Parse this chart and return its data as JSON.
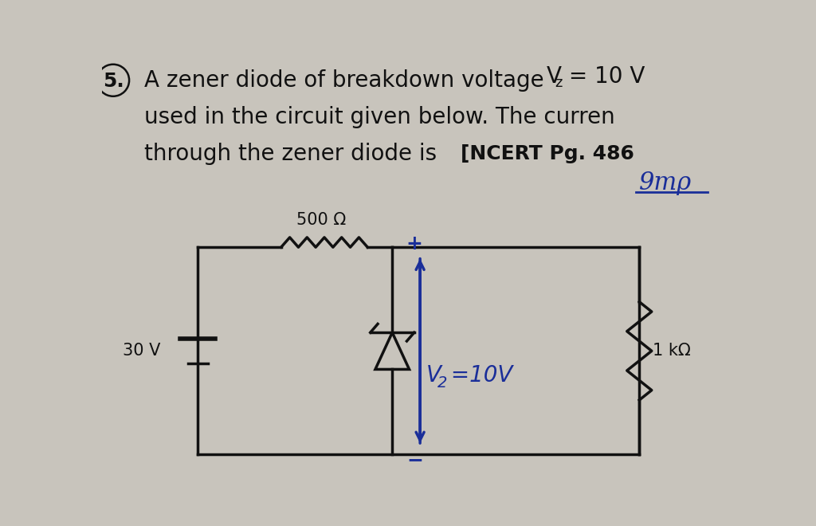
{
  "bg_color": "#c8c4bc",
  "text_color": "#111111",
  "circuit_color": "#111111",
  "answer_color": "#1a2e99",
  "arrow_color": "#1a2e99",
  "resistor_label": "500 Ω",
  "battery_label": "30 V",
  "load_label": "1 kΩ",
  "answer_text": "9mρ",
  "question_num": "5.",
  "ncert_ref": "[NCERT Pg. 486",
  "line1a": "A zener diode of breakdown voltage ",
  "line1b": "V",
  "line1c": "z",
  "line1d": " = 10 V",
  "line2": "used in the circuit given below. The curren",
  "line3a": "through the zener diode is",
  "vz_text": "V",
  "vz_sub": "2",
  "vz_eq": " =10V",
  "plus": "+",
  "minus": "−",
  "font_size_main": 20,
  "font_size_label": 15,
  "lw": 2.5
}
